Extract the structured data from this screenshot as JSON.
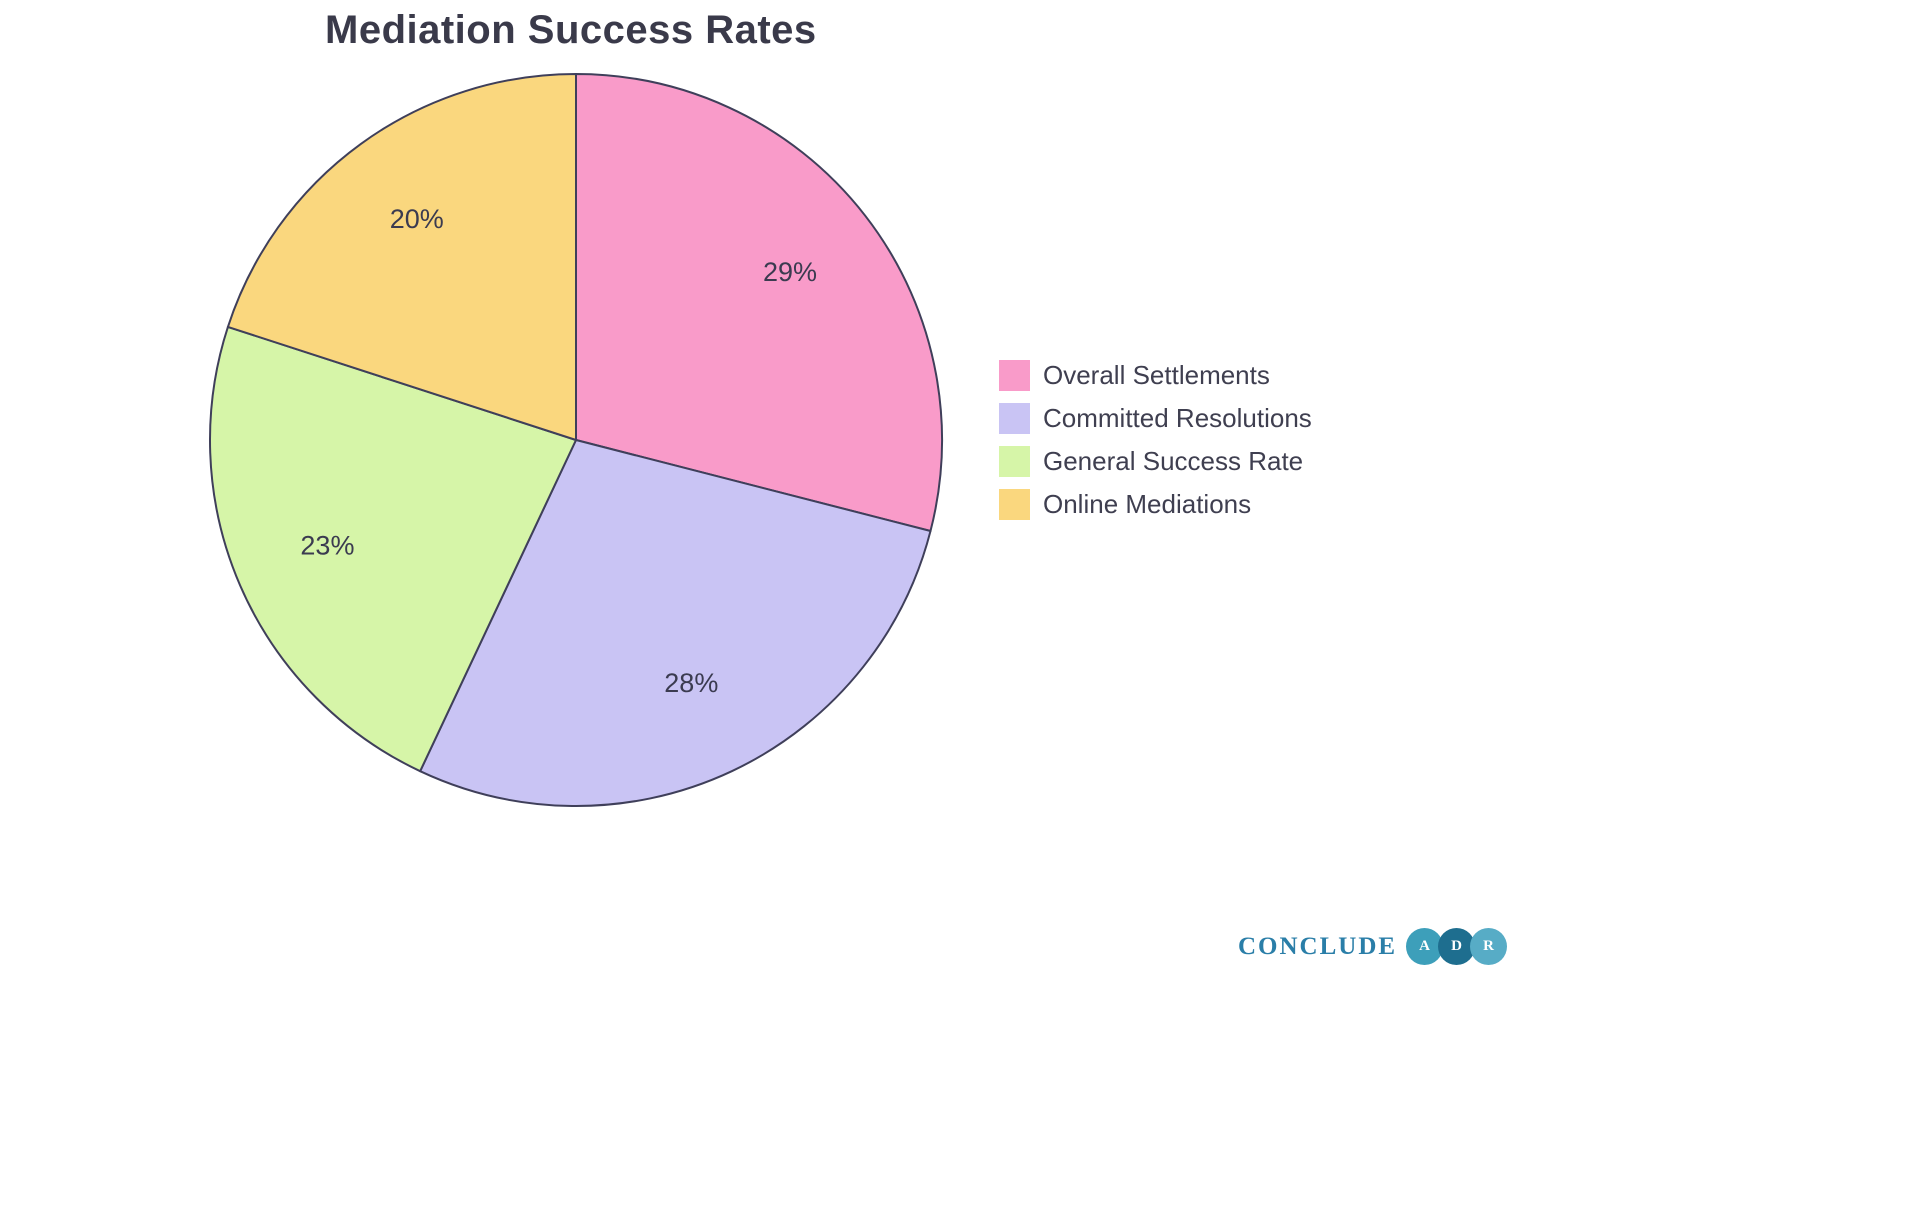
{
  "title": "Mediation Success Rates",
  "chart_data": {
    "type": "pie",
    "title": "Mediation Success Rates",
    "labels": [
      "Overall Settlements",
      "Committed Resolutions",
      "General Success Rate",
      "Online Mediations"
    ],
    "values": [
      29,
      28,
      23,
      20
    ],
    "value_labels": [
      "29%",
      "28%",
      "23%",
      "20%"
    ],
    "colors": [
      "#F99BC9",
      "#C9C4F4",
      "#D6F5A8",
      "#FAD77E"
    ],
    "stroke_color": "#3F3F5A",
    "start_angle_deg": -90,
    "direction": "clockwise",
    "legend_position": "right"
  },
  "logo": {
    "wordmark": "CONCLUDE",
    "wordmark_color": "#2A7EA8",
    "badges": [
      {
        "letter": "A",
        "color": "#3D9FBA"
      },
      {
        "letter": "D",
        "color": "#1E6E8F"
      },
      {
        "letter": "R",
        "color": "#57ACC6"
      }
    ]
  }
}
